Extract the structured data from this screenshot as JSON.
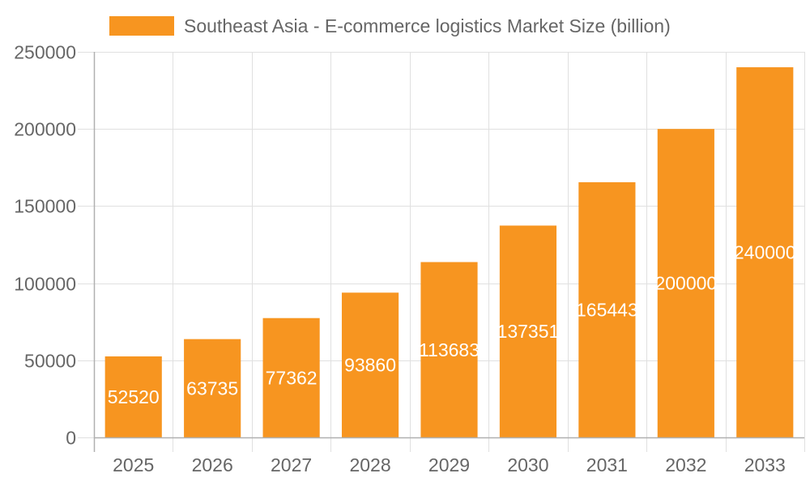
{
  "chart_data": {
    "type": "bar",
    "title": "",
    "legend": [
      {
        "label": "Southeast Asia - E-commerce logistics Market Size (billion)",
        "color": "#F79520"
      }
    ],
    "legend_position": "top",
    "categories": [
      "2025",
      "2026",
      "2027",
      "2028",
      "2029",
      "2030",
      "2031",
      "2032",
      "2033"
    ],
    "series": [
      {
        "name": "Southeast Asia - E-commerce logistics Market Size (billion)",
        "values": [
          52520,
          63735,
          77362,
          93860,
          113683,
          137351,
          165443,
          200000,
          240000
        ],
        "color": "#F79520"
      }
    ],
    "data_labels": [
      "52520",
      "63735",
      "77362",
      "93860",
      "113683",
      "137351",
      "165443",
      "200000",
      "240000"
    ],
    "xlabel": "",
    "ylabel": "",
    "ylim": [
      0,
      250000
    ],
    "yticks": [
      "0",
      "50000",
      "100000",
      "150000",
      "200000",
      "250000"
    ],
    "grid": true
  },
  "legend": {
    "label": "Southeast Asia - E-commerce logistics Market Size (billion)",
    "color": "#F79520"
  }
}
